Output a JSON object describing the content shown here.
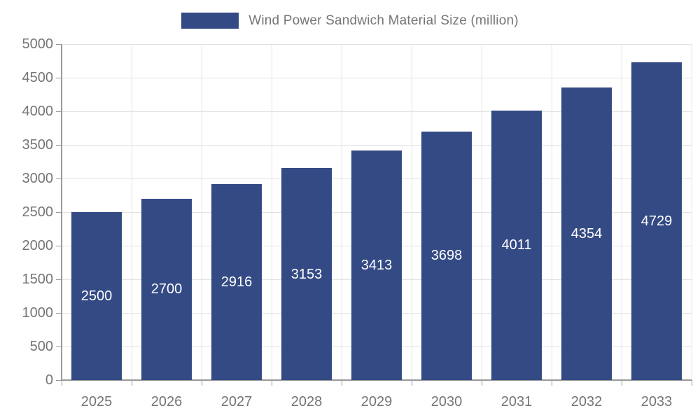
{
  "colors": {
    "bar": "#344a84",
    "grid": "#e2e2e2",
    "axis": "#999999",
    "axis_text": "#757575",
    "bar_label_text": "#ffffff"
  },
  "legend": {
    "label": "Wind Power Sandwich Material Size (million)"
  },
  "chart_data": {
    "type": "bar",
    "title": "Wind Power Sandwich Material Size (million)",
    "categories": [
      "2025",
      "2026",
      "2027",
      "2028",
      "2029",
      "2030",
      "2031",
      "2032",
      "2033"
    ],
    "values": [
      2500,
      2700,
      2916,
      3153,
      3413,
      3698,
      4011,
      4354,
      4729
    ],
    "xlabel": "",
    "ylabel": "",
    "ylim": [
      0,
      5000
    ],
    "ytick_step": 500,
    "yticks": [
      "0",
      "500",
      "1000",
      "1500",
      "2000",
      "2500",
      "3000",
      "3500",
      "4000",
      "4500",
      "5000"
    ],
    "grid": true,
    "legend_position": "top",
    "bar_labels_visible": true,
    "bar_label_position": "inside-center"
  }
}
